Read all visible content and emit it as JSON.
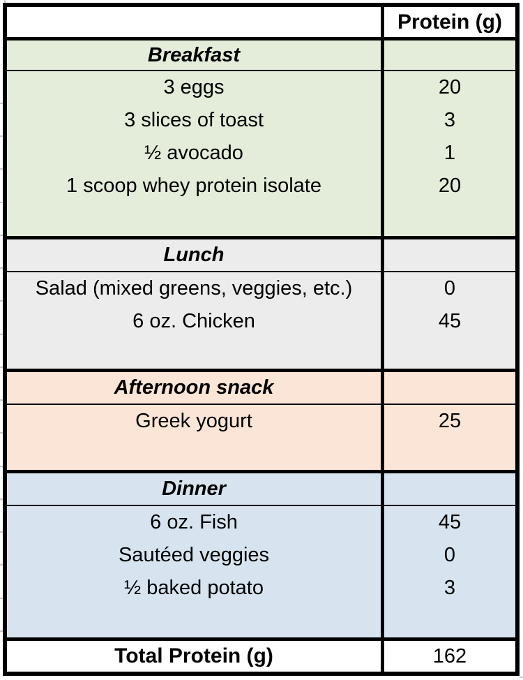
{
  "table": {
    "header": {
      "protein_col": "Protein (g)"
    },
    "sections": [
      {
        "title": "Breakfast",
        "color": "#E3EDDA",
        "items": [
          {
            "name": "3 eggs",
            "protein": "20"
          },
          {
            "name": "3 slices of toast",
            "protein": "3"
          },
          {
            "name": "½ avocado",
            "protein": "1"
          },
          {
            "name": "1 scoop whey protein isolate",
            "protein": "20"
          }
        ]
      },
      {
        "title": "Lunch",
        "color": "#ECECEC",
        "items": [
          {
            "name": "Salad (mixed greens, veggies, etc.)",
            "protein": "0"
          },
          {
            "name": "6 oz. Chicken",
            "protein": "45"
          }
        ]
      },
      {
        "title": "Afternoon snack",
        "color": "#FBE5D6",
        "items": [
          {
            "name": "Greek yogurt",
            "protein": "25"
          }
        ]
      },
      {
        "title": "Dinner",
        "color": "#D7E4F0",
        "items": [
          {
            "name": "6 oz. Fish",
            "protein": "45"
          },
          {
            "name": "Sautéed veggies",
            "protein": "0"
          },
          {
            "name": "½ baked potato",
            "protein": "3"
          }
        ]
      }
    ],
    "total": {
      "label": "Total Protein (g)",
      "value": "162"
    }
  },
  "colors": {
    "border": "#000000",
    "breakfast_bg": "#E3EDDA",
    "lunch_bg": "#ECECEC",
    "snack_bg": "#FBE5D6",
    "dinner_bg": "#D7E4F0",
    "gridline": "#C9C9C9"
  }
}
